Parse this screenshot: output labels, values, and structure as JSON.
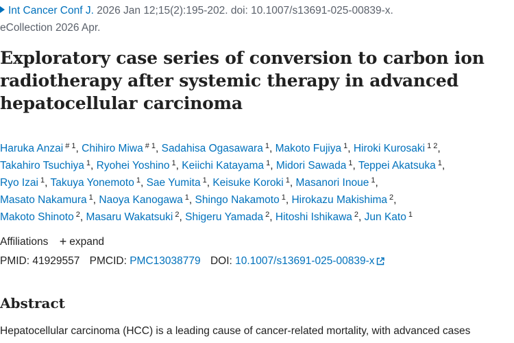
{
  "citation": {
    "journal": "Int Cancer Conf J.",
    "details": " 2026 Jan 12;15(2):195-202. doi: 10.1007/s13691-025-00839-x.",
    "ecollection": "eCollection 2026 Apr."
  },
  "title": "Exploratory case series of conversion to carbon ion radiotherapy after systemic therapy in advanced hepatocellular carcinoma",
  "author_lines": [
    [
      {
        "name": "Haruka Anzai",
        "sup": "# 1"
      },
      {
        "name": "Chihiro Miwa",
        "sup": "# 1"
      },
      {
        "name": "Sadahisa Ogasawara",
        "sup": "1"
      },
      {
        "name": "Makoto Fujiya",
        "sup": "1"
      },
      {
        "name": "Hiroki Kurosaki",
        "sup": "1 2"
      }
    ],
    [
      {
        "name": "Takahiro Tsuchiya",
        "sup": "1"
      },
      {
        "name": "Ryohei Yoshino",
        "sup": "1"
      },
      {
        "name": "Keiichi Katayama",
        "sup": "1"
      },
      {
        "name": "Midori Sawada",
        "sup": "1"
      },
      {
        "name": "Teppei Akatsuka",
        "sup": "1"
      }
    ],
    [
      {
        "name": "Ryo Izai",
        "sup": "1"
      },
      {
        "name": "Takuya Yonemoto",
        "sup": "1"
      },
      {
        "name": "Sae Yumita",
        "sup": "1"
      },
      {
        "name": "Keisuke Koroki",
        "sup": "1"
      },
      {
        "name": "Masanori Inoue",
        "sup": "1"
      }
    ],
    [
      {
        "name": "Masato Nakamura",
        "sup": "1"
      },
      {
        "name": "Naoya Kanogawa",
        "sup": "1"
      },
      {
        "name": "Shingo Nakamoto",
        "sup": "1"
      },
      {
        "name": "Hirokazu Makishima",
        "sup": "2"
      }
    ],
    [
      {
        "name": "Makoto Shinoto",
        "sup": "2"
      },
      {
        "name": "Masaru Wakatsuki",
        "sup": "2"
      },
      {
        "name": "Shigeru Yamada",
        "sup": "2"
      },
      {
        "name": "Hitoshi Ishikawa",
        "sup": "2"
      },
      {
        "name": "Jun Kato",
        "sup": "1"
      }
    ]
  ],
  "affiliations": {
    "label": "Affiliations",
    "expand_icon": "plus-icon",
    "expand_label": "expand"
  },
  "ids": {
    "pmid_label": "PMID:",
    "pmid": "41929557",
    "pmcid_label": "PMCID:",
    "pmcid": "PMC13038779",
    "doi_label": "DOI:",
    "doi": "10.1007/s13691-025-00839-x",
    "doi_icon": "external-link-icon"
  },
  "abstract": {
    "heading": "Abstract",
    "text": "Hepatocellular carcinoma (HCC) is a leading cause of cancer-related mortality, with advanced cases"
  },
  "colors": {
    "link": "#0071bc",
    "text": "#212121",
    "muted": "#5b616b"
  }
}
